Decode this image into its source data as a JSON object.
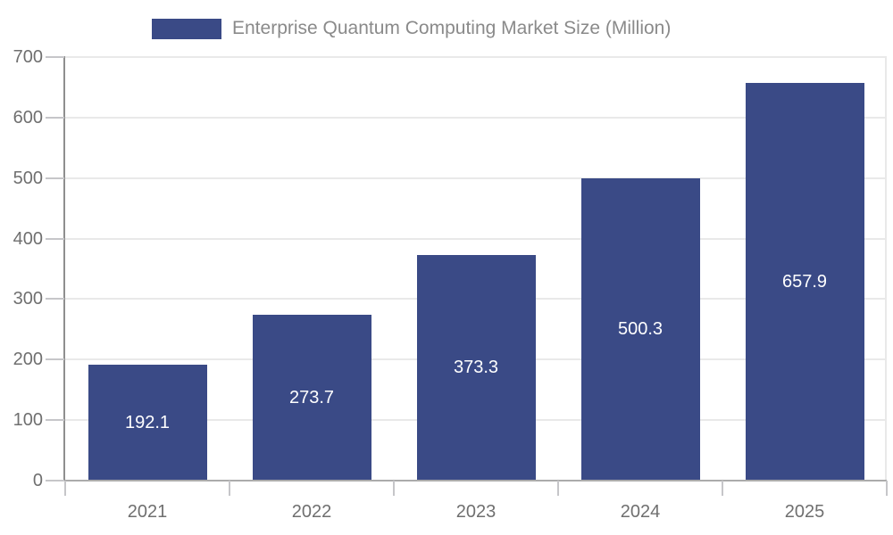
{
  "legend": {
    "label": "Enterprise Quantum Computing Market Size (Million)",
    "swatch_color": "#3A4A86"
  },
  "chart_data": {
    "type": "bar",
    "title": "Enterprise Quantum Computing Market Size (Million)",
    "series_name": "Enterprise Quantum Computing Market Size (Million)",
    "categories": [
      "2021",
      "2022",
      "2023",
      "2024",
      "2025"
    ],
    "values": [
      192.1,
      273.7,
      373.3,
      500.3,
      657.9
    ],
    "data_labels": [
      "192.1",
      "273.7",
      "373.3",
      "500.3",
      "657.9"
    ],
    "xlabel": "",
    "ylabel": "",
    "ylim": [
      0,
      700
    ],
    "yticks": [
      0,
      100,
      200,
      300,
      400,
      500,
      600,
      700
    ],
    "grid": true,
    "legend_position": "top",
    "colors": {
      "bar_fill": "#3A4A86",
      "bar_label_text": "#ffffff",
      "axis_line": "#8f8f8f",
      "x_axis_line": "#ababab",
      "gridline": "#e9e9e9",
      "tick": "#c6c6c9",
      "tick_label_text": "#6f6f6f",
      "legend_text": "#8a8a8a"
    }
  }
}
